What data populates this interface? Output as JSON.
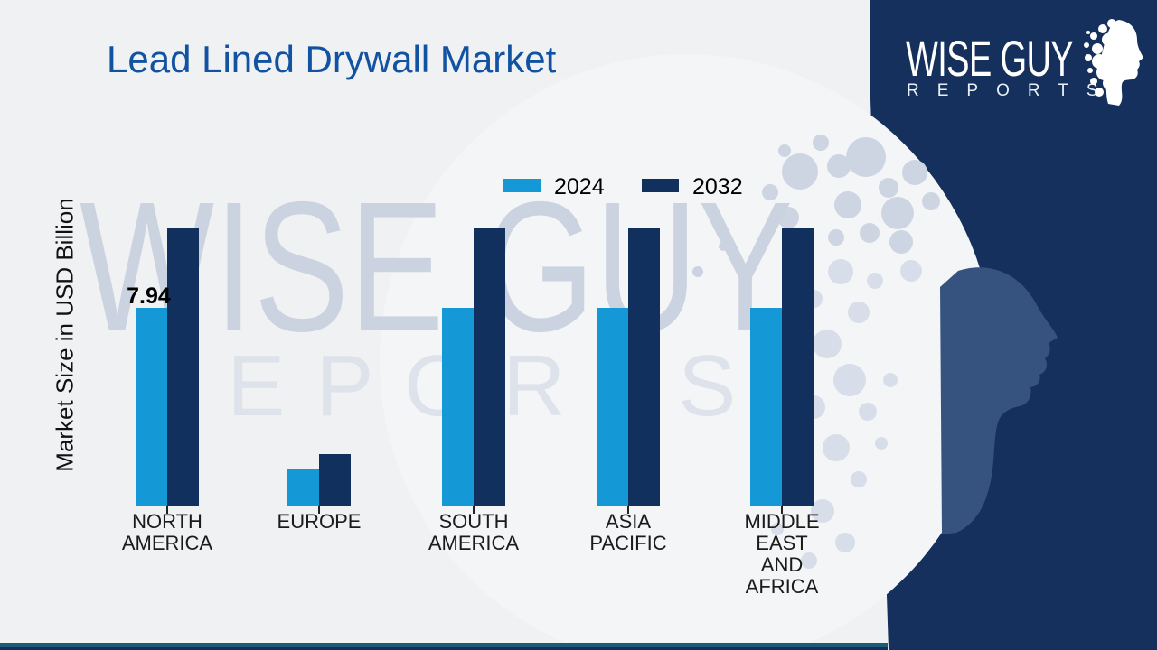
{
  "page": {
    "title": "Lead Lined Drywall Market"
  },
  "logo": {
    "brand": "WISE GUY",
    "reports": "REPORTS"
  },
  "watermark": {
    "line1": "WISE GUY",
    "line2": "REPORTS"
  },
  "chart_data": {
    "type": "bar",
    "title": "Lead Lined Drywall Market",
    "xlabel": "",
    "ylabel": "Market Size in USD Billion",
    "categories": [
      "NORTH AMERICA",
      "EUROPE",
      "SOUTH AMERICA",
      "ASIA PACIFIC",
      "MIDDLE EAST AND AFRICA"
    ],
    "category_label_lines": [
      [
        "NORTH",
        "AMERICA"
      ],
      [
        "EUROPE"
      ],
      [
        "SOUTH",
        "AMERICA"
      ],
      [
        "ASIA",
        "PACIFIC"
      ],
      [
        "MIDDLE",
        "EAST",
        "AND",
        "AFRICA"
      ]
    ],
    "series": [
      {
        "name": "2024",
        "color": "#1499d6",
        "values": [
          7.94,
          1.5,
          7.94,
          7.94,
          7.94
        ]
      },
      {
        "name": "2032",
        "color": "#12305e",
        "values": [
          11.1,
          2.1,
          11.1,
          11.1,
          11.1
        ]
      }
    ],
    "bar_labels": [
      {
        "series_index": 0,
        "category_index": 0,
        "text": "7.94"
      }
    ],
    "legend": {
      "items": [
        "2024",
        "2032"
      ],
      "position": "top-center"
    },
    "grid": false,
    "ylim": [
      0,
      12.5
    ]
  },
  "colors": {
    "background": "#f0f1f2",
    "title": "#1152a2",
    "bar_2024": "#1499d6",
    "bar_2032": "#12305e",
    "panel_navy": "#15305c",
    "footer_teal": "#1b5b7c",
    "footer_navy": "#132e57",
    "watermark_text": "#ccd3e0"
  }
}
